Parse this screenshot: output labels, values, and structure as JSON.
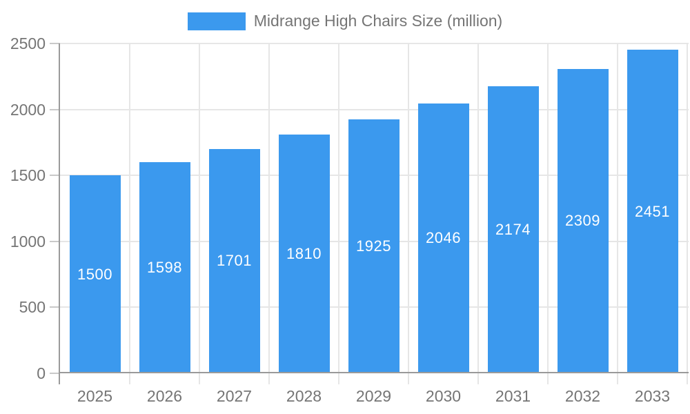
{
  "legend": {
    "label": "Midrange High Chairs Size (million)"
  },
  "colors": {
    "background": "#FFFFFF",
    "bar": "#3B99EE",
    "axis": "#9A9A9A",
    "grid": "#E6E6E6",
    "tick": "#C9C9C9",
    "text": "#757575",
    "barlabel": "#FFFFFF"
  },
  "chart_data": {
    "type": "bar",
    "title": "",
    "categories": [
      "2025",
      "2026",
      "2027",
      "2028",
      "2029",
      "2030",
      "2031",
      "2032",
      "2033"
    ],
    "series": [
      {
        "name": "Midrange High Chairs Size (million)",
        "values": [
          1500,
          1598,
          1701,
          1810,
          1925,
          2046,
          2174,
          2309,
          2451
        ]
      }
    ],
    "xlabel": "",
    "ylabel": "",
    "ylim": [
      0,
      2500
    ],
    "yticks": [
      0,
      500,
      1000,
      1500,
      2000,
      2500
    ],
    "grid": true,
    "legend_position": "top-center",
    "bar_value_labels": "inside-center"
  }
}
